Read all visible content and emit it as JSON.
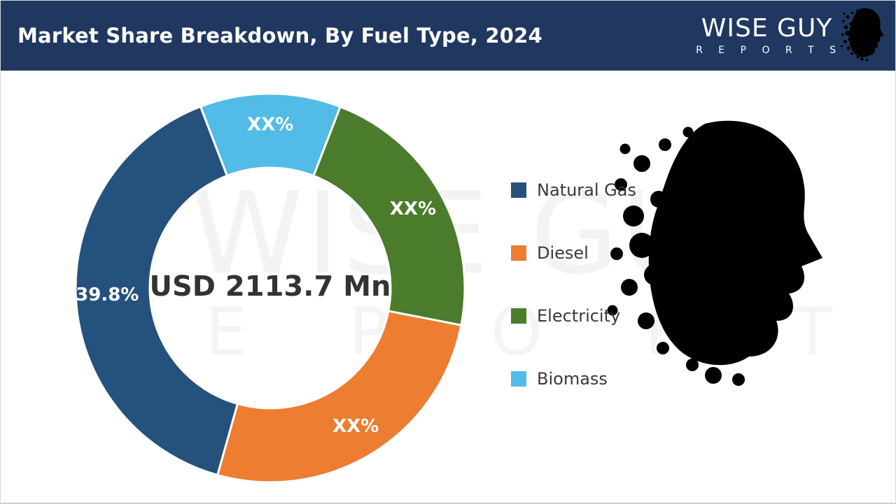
{
  "header": {
    "title": "Market Share Breakdown, By Fuel Type, 2024",
    "background_color": "#20385f",
    "logo": {
      "line1": "WISE GUY",
      "line2": "R E P O R T S"
    }
  },
  "watermark": {
    "line1": "WISE GUY",
    "line2": "E P O R T S"
  },
  "chart_data": {
    "type": "pie",
    "subtype": "donut",
    "title": "Market Share Breakdown, By Fuel Type, 2024",
    "center_label": "USD 2113.7 Mn",
    "legend_position": "right",
    "segments": [
      {
        "name": "Biomass",
        "percent": 11.7,
        "label": "XX%",
        "color": "#52bbe7"
      },
      {
        "name": "Electricity",
        "percent": 22.2,
        "label": "XX%",
        "color": "#4a7c2c"
      },
      {
        "name": "Diesel",
        "percent": 26.3,
        "label": "XX%",
        "color": "#ec7d31"
      },
      {
        "name": "Natural Gas",
        "percent": 39.8,
        "label": "39.8%",
        "color": "#25517d"
      }
    ],
    "legend": [
      {
        "label": "Natural Gas",
        "color": "#25517d"
      },
      {
        "label": "Diesel",
        "color": "#ec7d31"
      },
      {
        "label": "Electricity",
        "color": "#4a7c2c"
      },
      {
        "label": "Biomass",
        "color": "#52bbe7"
      }
    ]
  }
}
